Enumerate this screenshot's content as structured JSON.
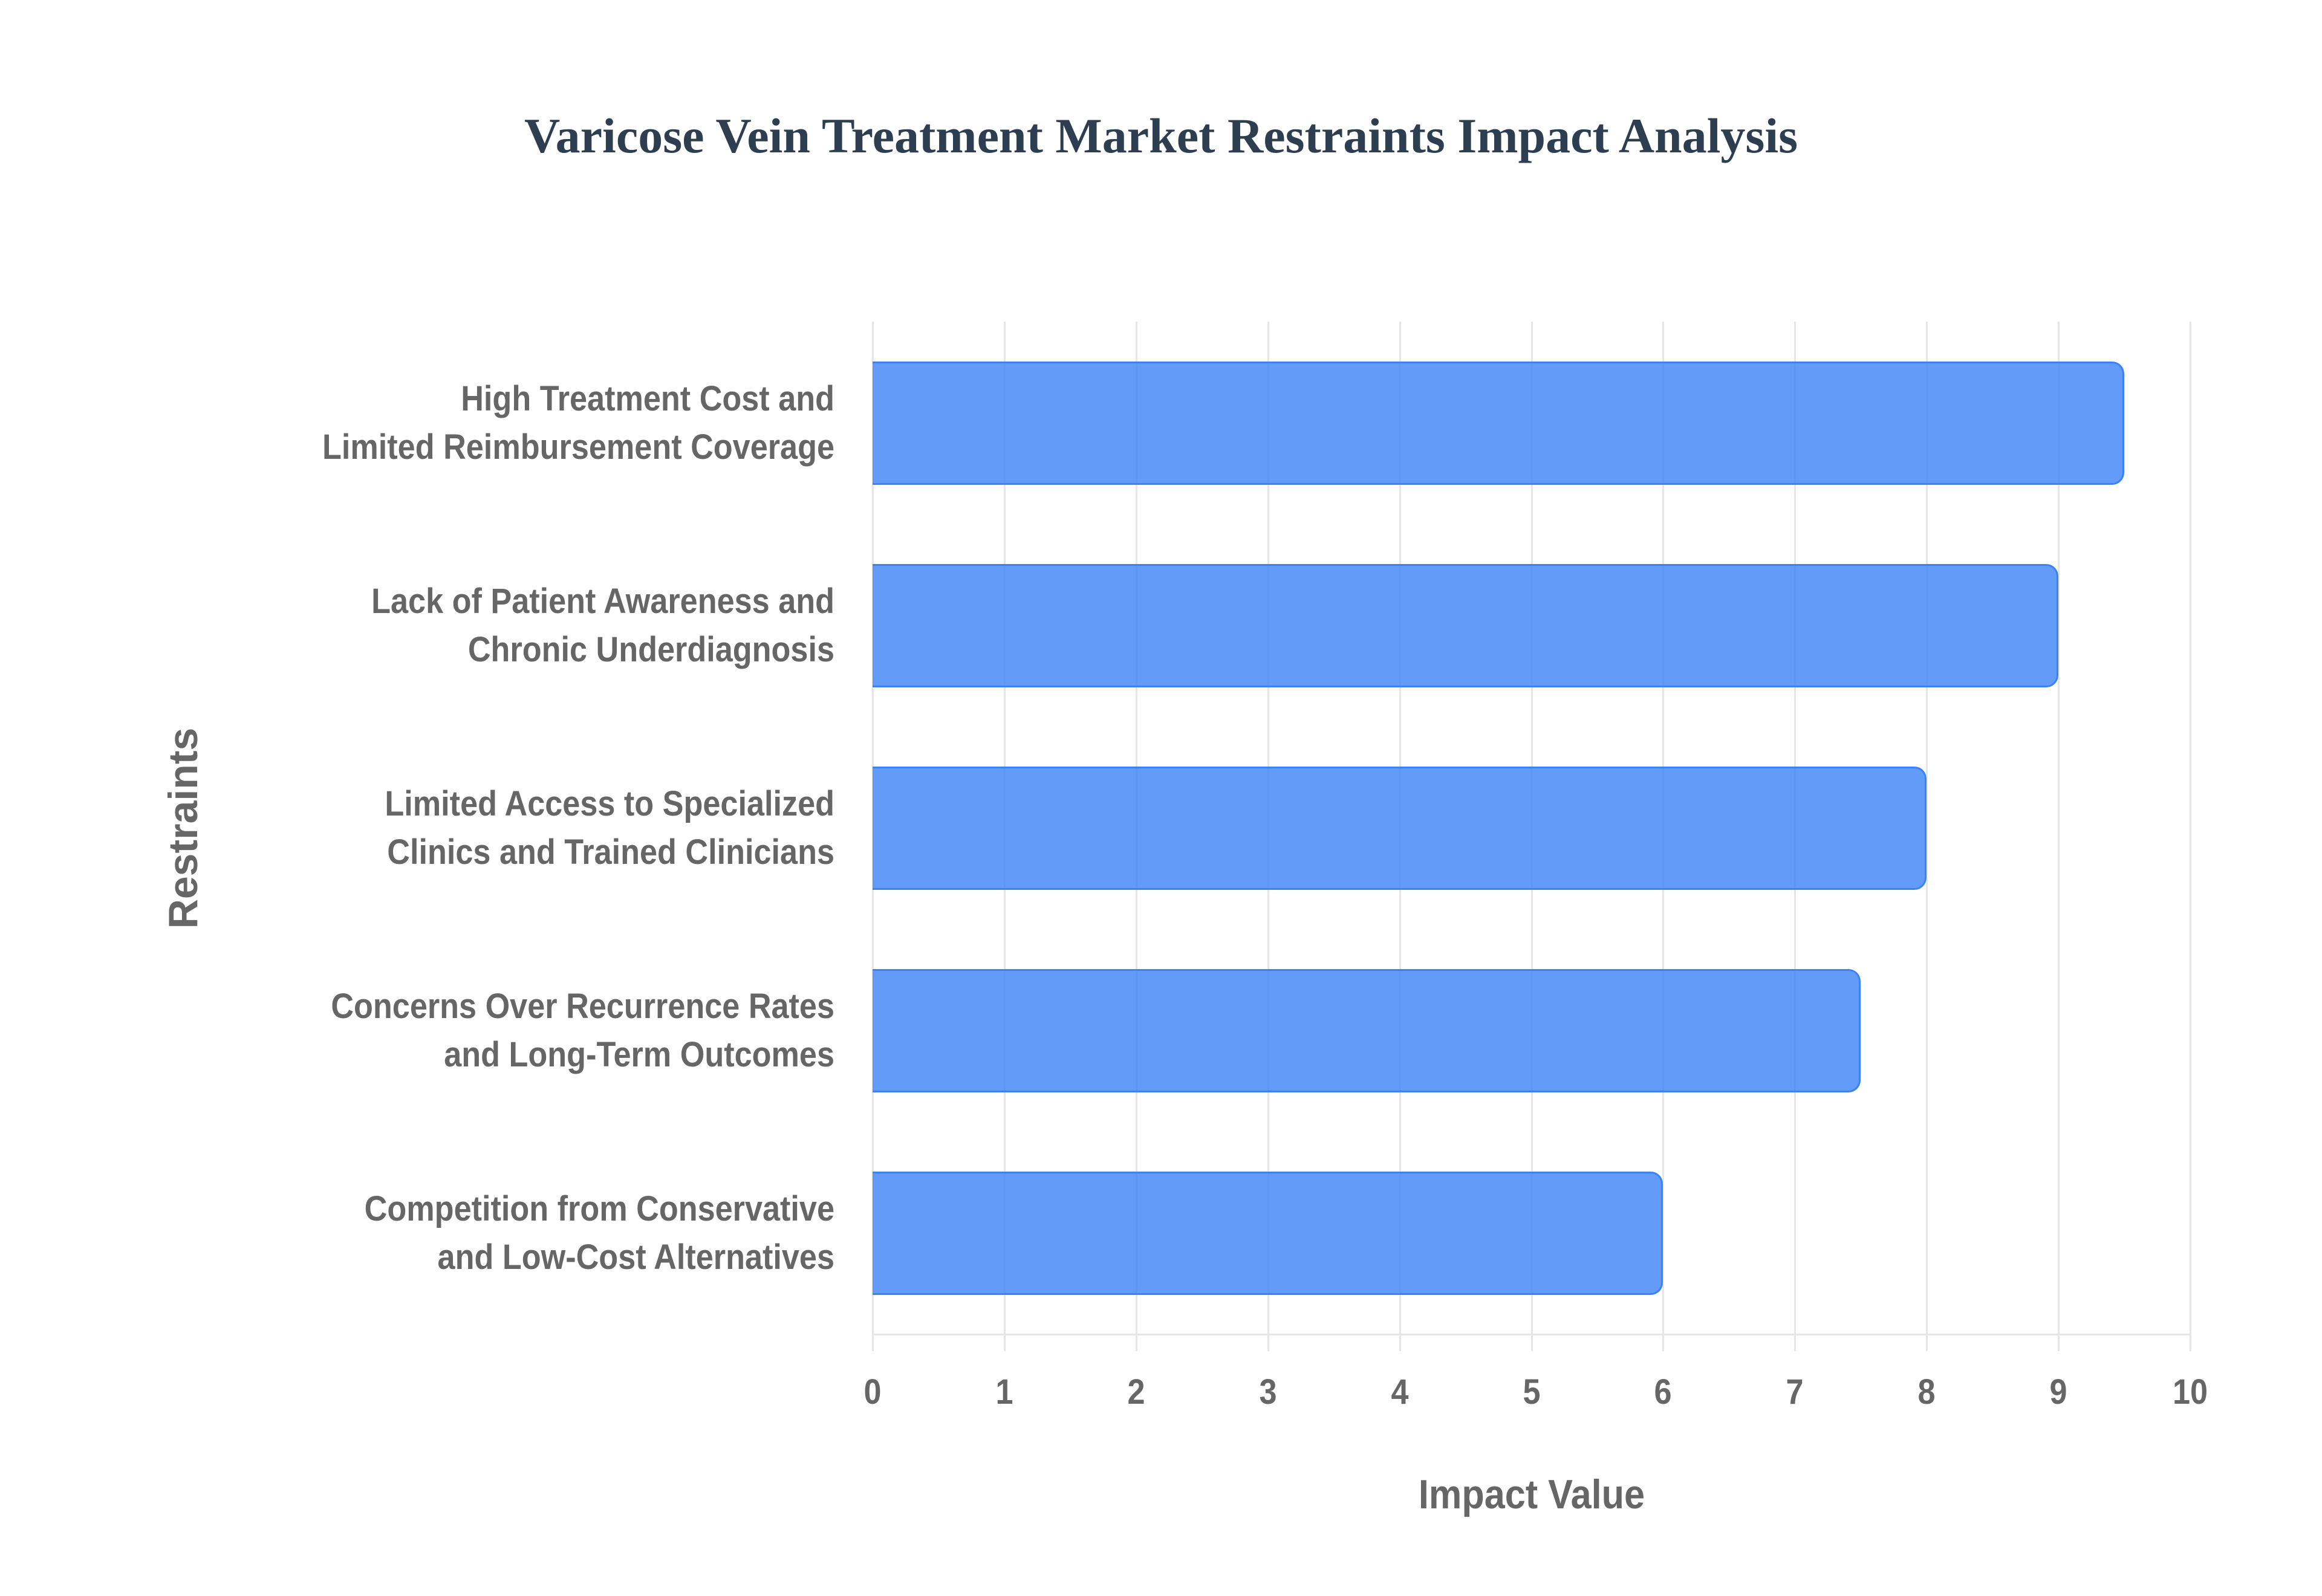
{
  "title": "Varicose Vein Treatment Market Restraints Impact Analysis",
  "axes": {
    "x_title": "Impact Value",
    "y_title": "Restraints",
    "x_ticks": [
      "0",
      "1",
      "2",
      "3",
      "4",
      "5",
      "6",
      "7",
      "8",
      "9",
      "10"
    ]
  },
  "bars": [
    {
      "line1": "High Treatment Cost and",
      "line2": "Limited Reimbursement Coverage",
      "value": 9.5
    },
    {
      "line1": "Lack of Patient Awareness and",
      "line2": "Chronic Underdiagnosis",
      "value": 9.0
    },
    {
      "line1": "Limited Access to Specialized",
      "line2": "Clinics and Trained Clinicians",
      "value": 8.0
    },
    {
      "line1": "Concerns Over Recurrence Rates",
      "line2": "and Long-Term Outcomes",
      "value": 7.5
    },
    {
      "line1": "Competition from Conservative",
      "line2": "and Low-Cost Alternatives",
      "value": 6.0
    }
  ],
  "colors": {
    "bar_fill": "#6299f8",
    "bar_border": "#3b82f6",
    "title": "#2c3e50",
    "label": "#666666",
    "grid": "#e6e6e6"
  },
  "chart_data": {
    "type": "bar",
    "orientation": "horizontal",
    "title": "Varicose Vein Treatment Market Restraints Impact Analysis",
    "xlabel": "Impact Value",
    "ylabel": "Restraints",
    "categories": [
      "High Treatment Cost and Limited Reimbursement Coverage",
      "Lack of Patient Awareness and Chronic Underdiagnosis",
      "Limited Access to Specialized Clinics and Trained Clinicians",
      "Concerns Over Recurrence Rates and Long-Term Outcomes",
      "Competition from Conservative and Low-Cost Alternatives"
    ],
    "values": [
      9.5,
      9.0,
      8.0,
      7.5,
      6.0
    ],
    "xlim": [
      0,
      10
    ],
    "x_ticks": [
      0,
      1,
      2,
      3,
      4,
      5,
      6,
      7,
      8,
      9,
      10
    ],
    "grid": {
      "vertical": true,
      "horizontal": false
    },
    "legend": null
  }
}
